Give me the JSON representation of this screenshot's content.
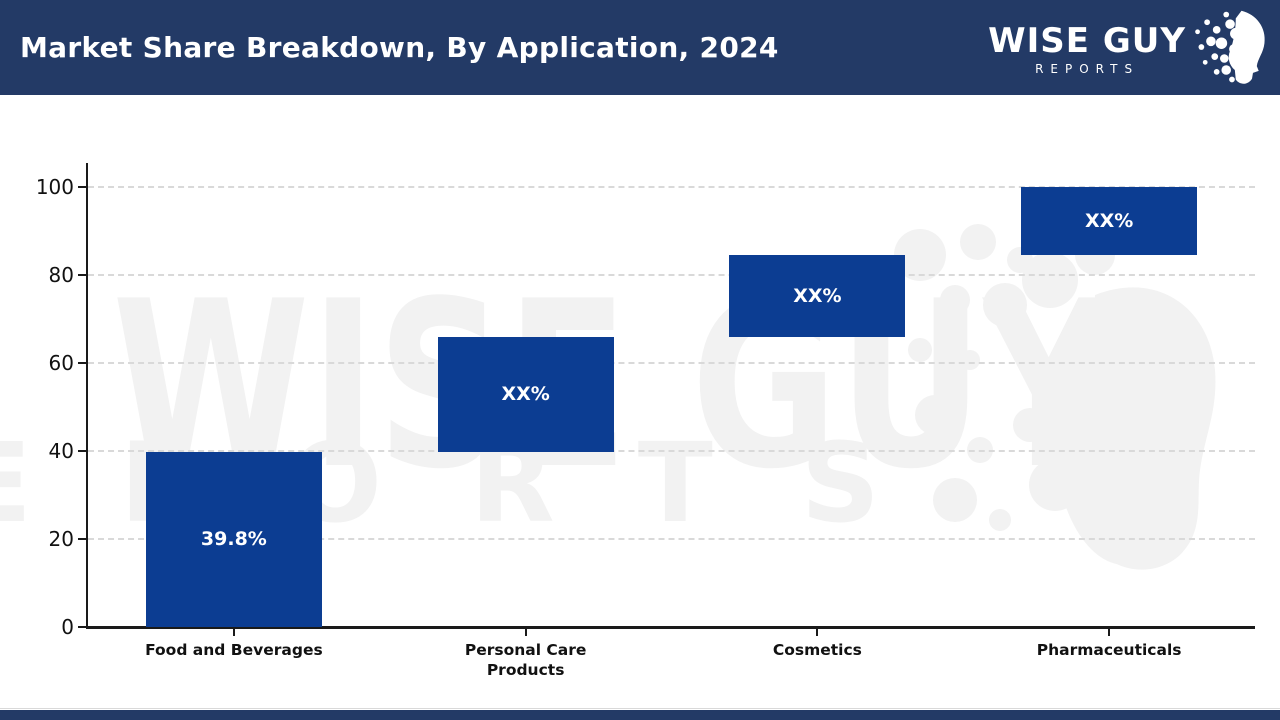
{
  "header": {
    "title": "Market Share Breakdown, By Application, 2024",
    "logo": {
      "line1": "WISE GUY",
      "line2": "REPORTS"
    }
  },
  "watermark": {
    "line1": "WISE GUY",
    "line2": "REPORTS"
  },
  "colors": {
    "header_bg": "#233a66",
    "bar": "#0c3d92",
    "grid": "#d9d9d9",
    "watermark": "#f2f2f2",
    "axis": "#1a1a1a",
    "bar_label": "#ffffff",
    "title_text": "#ffffff"
  },
  "chart_data": {
    "type": "bar",
    "subtype": "waterfall",
    "title": "Market Share Breakdown, By Application, 2024",
    "categories": [
      "Food and Beverages",
      "Personal Care Products",
      "Cosmetics",
      "Pharmaceuticals"
    ],
    "segments": [
      {
        "category": "Food and Beverages",
        "start": 0,
        "end": 39.8,
        "label": "39.8%"
      },
      {
        "category": "Personal Care Products",
        "start": 39.8,
        "end": 66.0,
        "label": "XX%"
      },
      {
        "category": "Cosmetics",
        "start": 66.0,
        "end": 84.5,
        "label": "XX%"
      },
      {
        "category": "Pharmaceuticals",
        "start": 84.5,
        "end": 100.0,
        "label": "XX%"
      }
    ],
    "xlabel": "",
    "ylabel": "",
    "ylim": [
      0,
      105
    ],
    "yticks": [
      0,
      20,
      40,
      60,
      80,
      100
    ],
    "grid": "dashed-horizontal",
    "legend": false
  }
}
